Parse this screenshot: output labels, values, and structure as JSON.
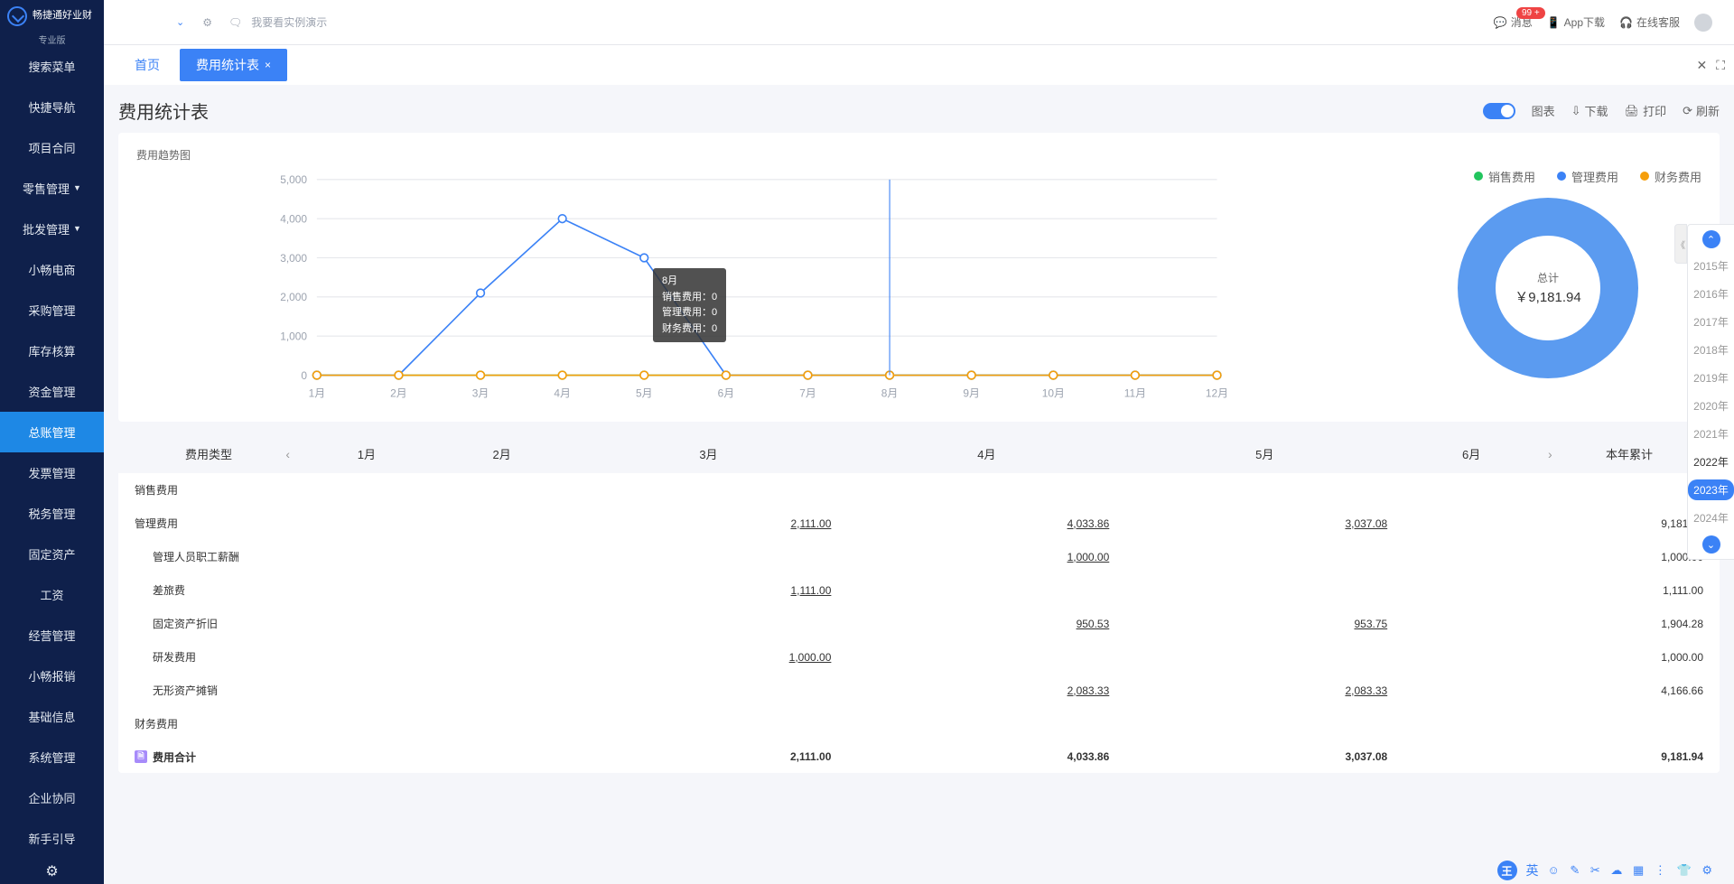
{
  "brand": {
    "name": "畅捷通好业财",
    "edition": "专业版"
  },
  "topbar": {
    "company": "",
    "demo_prompt": "我要看实例演示",
    "message": "消息",
    "message_badge": "99 +",
    "app_download": "App下载",
    "online_service": "在线客服",
    "username": ""
  },
  "sidebar": {
    "items": [
      {
        "label": "搜索菜单",
        "expandable": false
      },
      {
        "label": "快捷导航",
        "expandable": false
      },
      {
        "label": "项目合同",
        "expandable": false
      },
      {
        "label": "零售管理",
        "expandable": true
      },
      {
        "label": "批发管理",
        "expandable": true
      },
      {
        "label": "小畅电商",
        "expandable": false
      },
      {
        "label": "采购管理",
        "expandable": false
      },
      {
        "label": "库存核算",
        "expandable": false
      },
      {
        "label": "资金管理",
        "expandable": false
      },
      {
        "label": "总账管理",
        "expandable": false,
        "active": true
      },
      {
        "label": "发票管理",
        "expandable": false
      },
      {
        "label": "税务管理",
        "expandable": false
      },
      {
        "label": "固定资产",
        "expandable": false
      },
      {
        "label": "工资",
        "expandable": false
      },
      {
        "label": "经营管理",
        "expandable": false
      },
      {
        "label": "小畅报销",
        "expandable": false
      },
      {
        "label": "基础信息",
        "expandable": false
      },
      {
        "label": "系统管理",
        "expandable": false
      },
      {
        "label": "企业协同",
        "expandable": false
      },
      {
        "label": "新手引导",
        "expandable": false
      }
    ]
  },
  "tabs": {
    "home": "首页",
    "active": "费用统计表"
  },
  "page": {
    "title": "费用统计表",
    "actions": {
      "chart_toggle_label": "图表",
      "download": "下载",
      "print": "打印",
      "refresh": "刷新"
    }
  },
  "legend": {
    "series": [
      {
        "label": "销售费用",
        "color": "#22c55e"
      },
      {
        "label": "管理费用",
        "color": "#3b82f6"
      },
      {
        "label": "财务费用",
        "color": "#f59e0b"
      }
    ]
  },
  "line_chart": {
    "title": "费用趋势图",
    "type": "line",
    "x_labels": [
      "1月",
      "2月",
      "3月",
      "4月",
      "5月",
      "6月",
      "7月",
      "8月",
      "9月",
      "10月",
      "11月",
      "12月"
    ],
    "y_ticks": [
      0,
      1000,
      2000,
      3000,
      4000,
      5000
    ],
    "ylim": [
      0,
      5000
    ],
    "series": [
      {
        "name": "销售费用",
        "color": "#22c55e",
        "values": [
          0,
          0,
          0,
          0,
          0,
          0,
          0,
          0,
          0,
          0,
          0,
          0
        ]
      },
      {
        "name": "管理费用",
        "color": "#3b82f6",
        "values": [
          0,
          0,
          2100,
          4000,
          3000,
          0,
          0,
          0,
          0,
          0,
          0,
          0
        ]
      },
      {
        "name": "财务费用",
        "color": "#f59e0b",
        "values": [
          0,
          0,
          0,
          0,
          0,
          0,
          0,
          0,
          0,
          0,
          0,
          0
        ]
      }
    ],
    "hover_month_index": 7,
    "tooltip": {
      "title": "8月",
      "rows": [
        "销售费用：0",
        "管理费用：0",
        "财务费用：0"
      ]
    },
    "grid_color": "#e5e7eb",
    "axis_color": "#9ca3af",
    "marker_radius": 4
  },
  "donut": {
    "label": "总计",
    "value": "￥9,181.94",
    "slices": [
      {
        "name": "管理费用",
        "color": "#5b9bf0",
        "value": 9181.94
      }
    ],
    "inner_radius_ratio": 0.58,
    "background": "#ffffff"
  },
  "table": {
    "type_header": "费用类型",
    "month_columns": [
      "1月",
      "2月",
      "3月",
      "4月",
      "5月",
      "6月"
    ],
    "total_column": "本年累计",
    "rows": [
      {
        "label": "销售费用",
        "indent": 0,
        "cells": [
          "",
          "",
          "",
          "",
          "",
          ""
        ],
        "total": ""
      },
      {
        "label": "管理费用",
        "indent": 0,
        "cells": [
          "",
          "",
          "2,111.00",
          "4,033.86",
          "3,037.08",
          ""
        ],
        "total": "9,181.94",
        "underline": [
          2,
          3,
          4
        ]
      },
      {
        "label": "管理人员职工薪酬",
        "indent": 1,
        "cells": [
          "",
          "",
          "",
          "1,000.00",
          "",
          ""
        ],
        "total": "1,000.00",
        "underline": [
          3
        ]
      },
      {
        "label": "差旅费",
        "indent": 1,
        "cells": [
          "",
          "",
          "1,111.00",
          "",
          "",
          ""
        ],
        "total": "1,111.00",
        "underline": [
          2
        ]
      },
      {
        "label": "固定资产折旧",
        "indent": 1,
        "cells": [
          "",
          "",
          "",
          "950.53",
          "953.75",
          ""
        ],
        "total": "1,904.28",
        "underline": [
          3,
          4
        ]
      },
      {
        "label": "研发费用",
        "indent": 1,
        "cells": [
          "",
          "",
          "1,000.00",
          "",
          "",
          ""
        ],
        "total": "1,000.00",
        "underline": [
          2
        ]
      },
      {
        "label": "无形资产摊销",
        "indent": 1,
        "cells": [
          "",
          "",
          "",
          "2,083.33",
          "2,083.33",
          ""
        ],
        "total": "4,166.66",
        "underline": [
          3,
          4
        ]
      },
      {
        "label": "财务费用",
        "indent": 0,
        "cells": [
          "",
          "",
          "",
          "",
          "",
          ""
        ],
        "total": ""
      }
    ],
    "total_row": {
      "label": "费用合计",
      "cells": [
        "",
        "",
        "2,111.00",
        "4,033.86",
        "3,037.08",
        ""
      ],
      "total": "9,181.94"
    }
  },
  "year_rail": {
    "years": [
      "2015年",
      "2016年",
      "2017年",
      "2018年",
      "2019年",
      "2020年",
      "2021年",
      "2022年",
      "2023年",
      "2024年"
    ],
    "current": "2022年",
    "selected": "2023年"
  },
  "ime": {
    "label": "英",
    "icons": "☺ ✎ ✂ ☁ ▦ ⋮ 👕 ⚙"
  }
}
